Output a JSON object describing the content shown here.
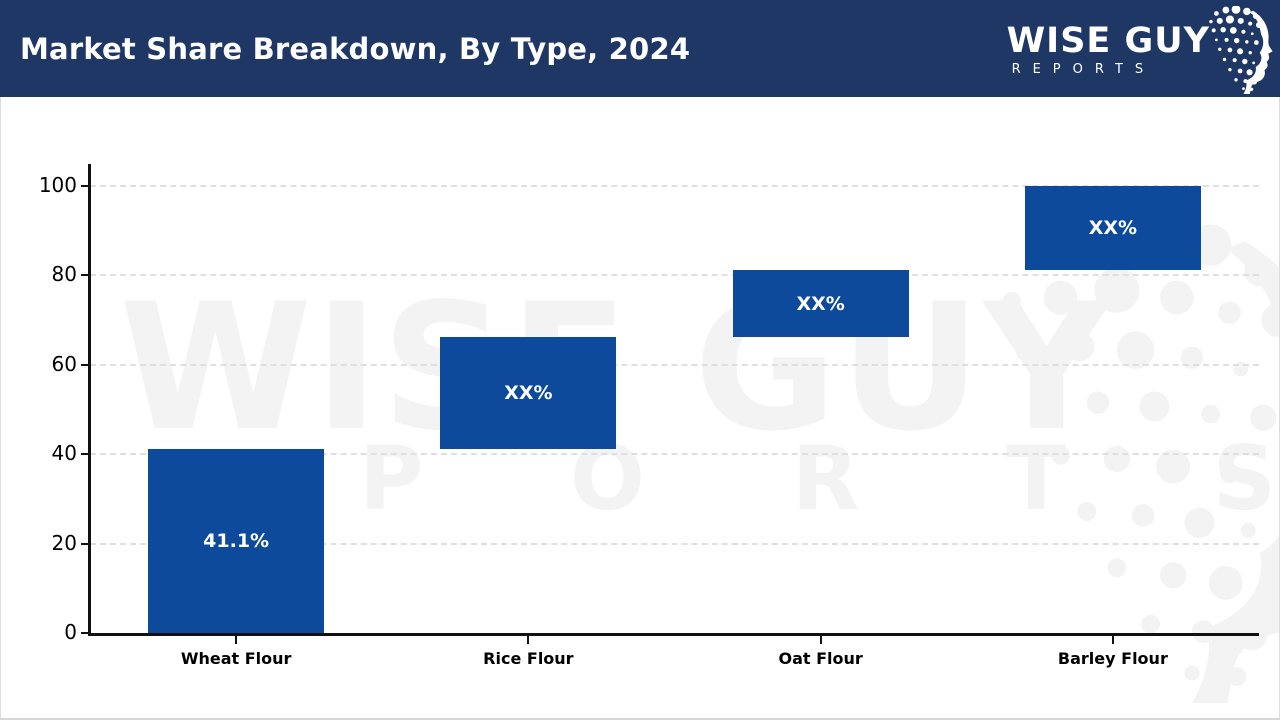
{
  "header": {
    "title": "Market Share Breakdown, By Type, 2024",
    "logo": {
      "line1": "WISE GUY",
      "line2": "REPORTS"
    }
  },
  "watermark": {
    "line1": "WISE GUY",
    "line2": "P O R T S"
  },
  "colors": {
    "header_bg": "#1f3765",
    "bar_blue": "#0d4a9c",
    "bar_label": "#ffffff",
    "watermark_gray": "#f3f3f3",
    "gridline": "#dfdfdf",
    "axis": "#111111",
    "background": "#ffffff"
  },
  "chart_data": {
    "type": "bar",
    "subtype": "waterfall",
    "title": "Market Share Breakdown, By Type, 2024",
    "categories": [
      "Wheat Flour",
      "Rice Flour",
      "Oat Flour",
      "Barley Flour"
    ],
    "segments": [
      {
        "category": "Wheat Flour",
        "start": 0,
        "end": 41.1,
        "label": "41.1%"
      },
      {
        "category": "Rice Flour",
        "start": 41.1,
        "end": 66.3,
        "label": "XX%"
      },
      {
        "category": "Oat Flour",
        "start": 66.3,
        "end": 81.1,
        "label": "XX%"
      },
      {
        "category": "Barley Flour",
        "start": 81.1,
        "end": 100,
        "label": "XX%"
      }
    ],
    "yticks": [
      0,
      20,
      40,
      60,
      80,
      100
    ],
    "ylim": [
      0,
      105
    ],
    "xlabel": "",
    "ylabel": "",
    "grid": "horizontal-dashed",
    "legend": "none"
  }
}
